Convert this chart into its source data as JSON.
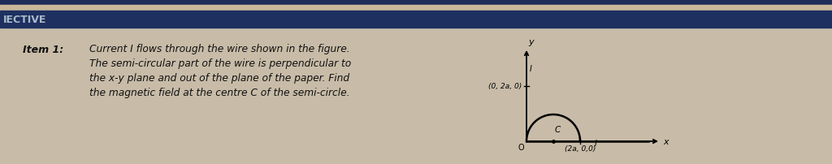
{
  "bg_top_dark": "#1e2d5a",
  "bg_stripe_tan": "#c9b99a",
  "bg_header_blue": "#1e3060",
  "bg_main_color": "#c8bca8",
  "header_text": "IECTIVE",
  "header_text_color": "#aabbcc",
  "item_label": "Item 1:",
  "main_text_line1": "Current I flows through the wire shown in the figure.",
  "main_text_line2": "The semi-circular part of the wire is perpendicular to",
  "main_text_line3": "the x-y plane and out of the plane of the paper. Find",
  "main_text_line4": "the magnetic field at the centre C of the semi-circle.",
  "text_color": "#111111",
  "label_0_2a_0": "(0, 2a, 0)",
  "label_2a_00": "(2a, 0,0)",
  "label_C": "C",
  "label_x": "x",
  "label_y": "y",
  "label_I_y": "I",
  "label_I_x": "I",
  "label_O": "O"
}
